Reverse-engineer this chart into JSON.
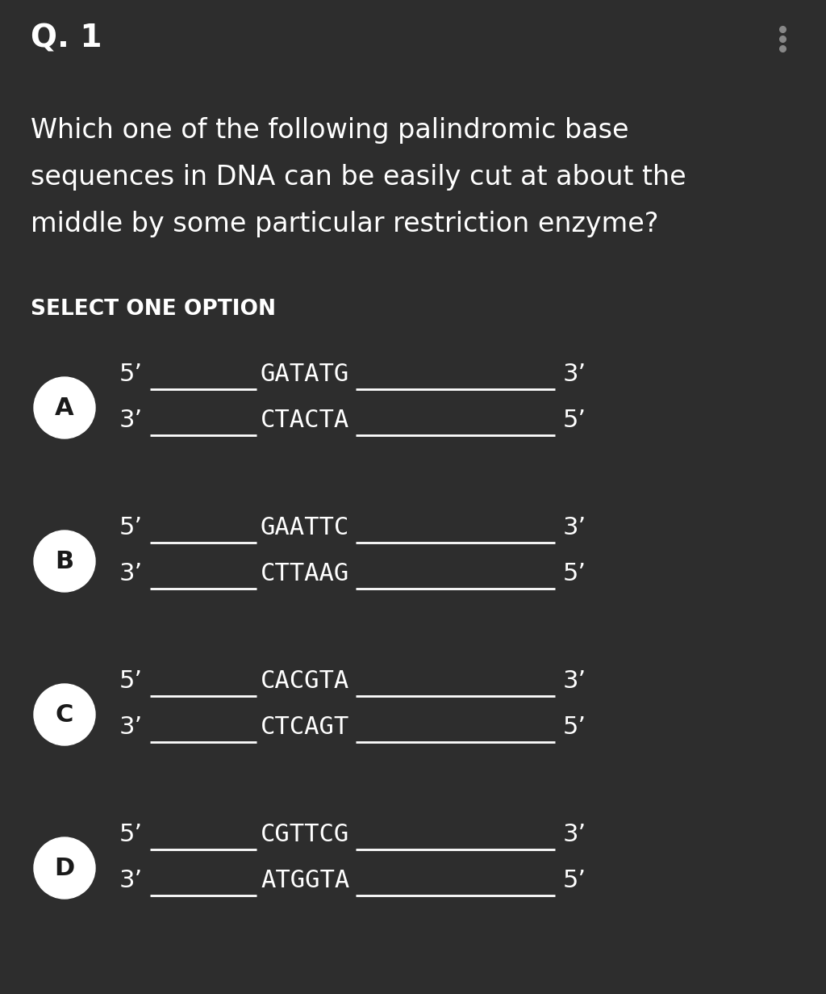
{
  "bg_color": "#2d2d2d",
  "text_color": "#ffffff",
  "label_color": "#1a1a1a",
  "question_number": "Q. 1",
  "question_line1": "Which one of the following palindromic base",
  "question_line2": "sequences in DNA can be easily cut at about the",
  "question_line3": "middle by some particular restriction enzyme?",
  "select_label": "SELECT ONE OPTION",
  "options": [
    {
      "label": "A",
      "line1_left": "5’",
      "line1_mid": "GATATG",
      "line1_right": "3’",
      "line2_left": "3’",
      "line2_mid": "CTACTA",
      "line2_right": "5’"
    },
    {
      "label": "B",
      "line1_left": "5’",
      "line1_mid": "GAATTC",
      "line1_right": "3’",
      "line2_left": "3’",
      "line2_mid": "CTTAAG",
      "line2_right": "5’"
    },
    {
      "label": "C",
      "line1_left": "5’",
      "line1_mid": "CACGTA",
      "line1_right": "3’",
      "line2_left": "3’",
      "line2_mid": "CTCAGT",
      "line2_right": "5’"
    },
    {
      "label": "D",
      "line1_left": "5’",
      "line1_mid": "CGTTCG",
      "line1_right": "3’",
      "line2_left": "3’",
      "line2_mid": "ATGGTA",
      "line2_right": "5’"
    }
  ],
  "dots_color": "#888888",
  "fig_width": 10.24,
  "fig_height": 12.31,
  "dpi": 100
}
